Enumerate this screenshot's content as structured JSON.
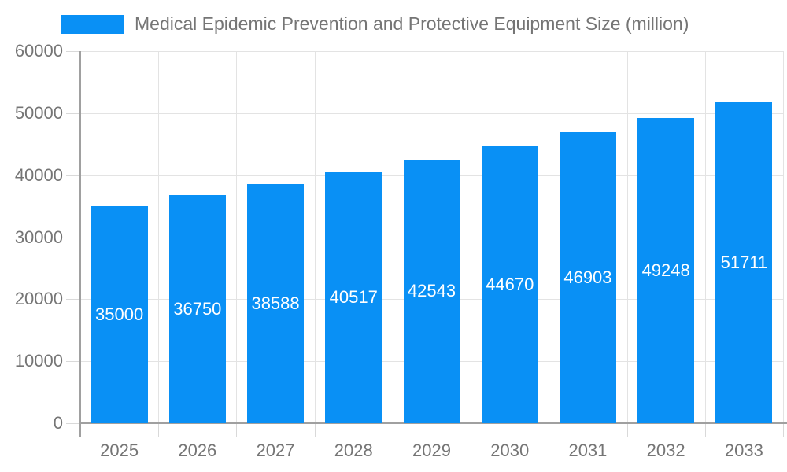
{
  "colors": {
    "bar": "#0990f5",
    "grid": "#e3e3e3",
    "tick": "#d9d9d9",
    "axis": "#a0a0a0",
    "text": "#757575",
    "value_label": "#ffffff",
    "background": "#ffffff"
  },
  "legend": {
    "label": "Medical Epidemic Prevention and Protective Equipment Size (million)"
  },
  "chart_data": {
    "type": "bar",
    "title": "Medical Epidemic Prevention and Protective Equipment Size (million)",
    "categories": [
      "2025",
      "2026",
      "2027",
      "2028",
      "2029",
      "2030",
      "2031",
      "2032",
      "2033"
    ],
    "values": [
      35000,
      36750,
      38588,
      40517,
      42543,
      44670,
      46903,
      49248,
      51711
    ],
    "series_name": "Medical Epidemic Prevention and Protective Equipment Size (million)",
    "xlabel": "",
    "ylabel": "",
    "ylim": [
      0,
      60000
    ],
    "ytick_step": 10000,
    "ytick_labels": [
      "0",
      "10000",
      "20000",
      "30000",
      "40000",
      "50000",
      "60000"
    ],
    "grid": true,
    "legend_position": "top-left",
    "value_label_position": "inside-center",
    "bar_color": "#0990f5"
  }
}
